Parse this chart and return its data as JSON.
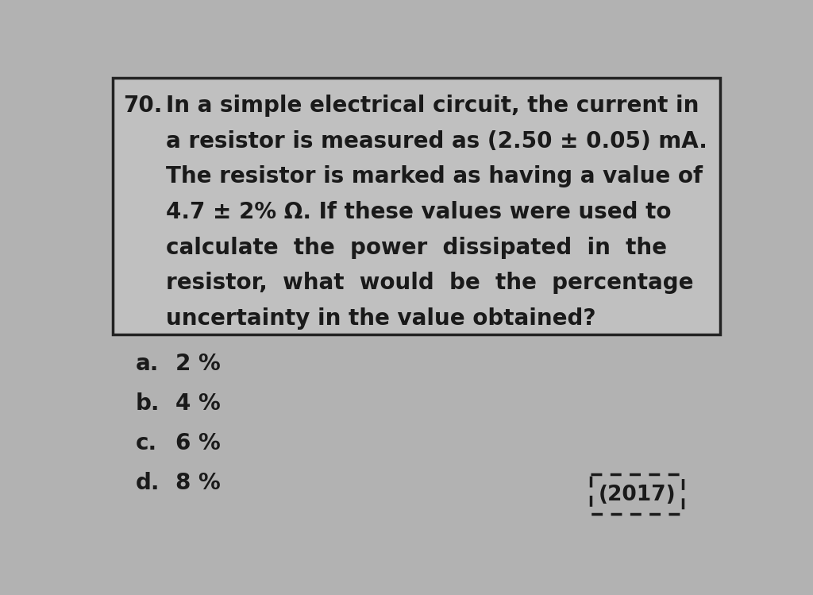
{
  "background_color": "#b2b2b2",
  "box_color": "#c0c0c0",
  "box_border_color": "#222222",
  "text_color": "#1a1a1a",
  "question_number": "70.",
  "question_line1": "In a simple electrical circuit, the current in",
  "question_lines": [
    "a resistor is measured as (2.50 ± 0.05) mA.",
    "The resistor is marked as having a value of",
    "4.7 ± 2% Ω. If these values were used to",
    "calculate  the  power  dissipated  in  the",
    "resistor,  what  would  be  the  percentage",
    "uncertainty in the value obtained?"
  ],
  "options": [
    [
      "a.",
      "2 %"
    ],
    [
      "b.",
      "4 %"
    ],
    [
      "c.",
      "6 %"
    ],
    [
      "d.",
      "8 %"
    ]
  ],
  "year_label": "(2017)",
  "font_size_question": 20,
  "font_size_options": 20,
  "font_size_year": 19
}
